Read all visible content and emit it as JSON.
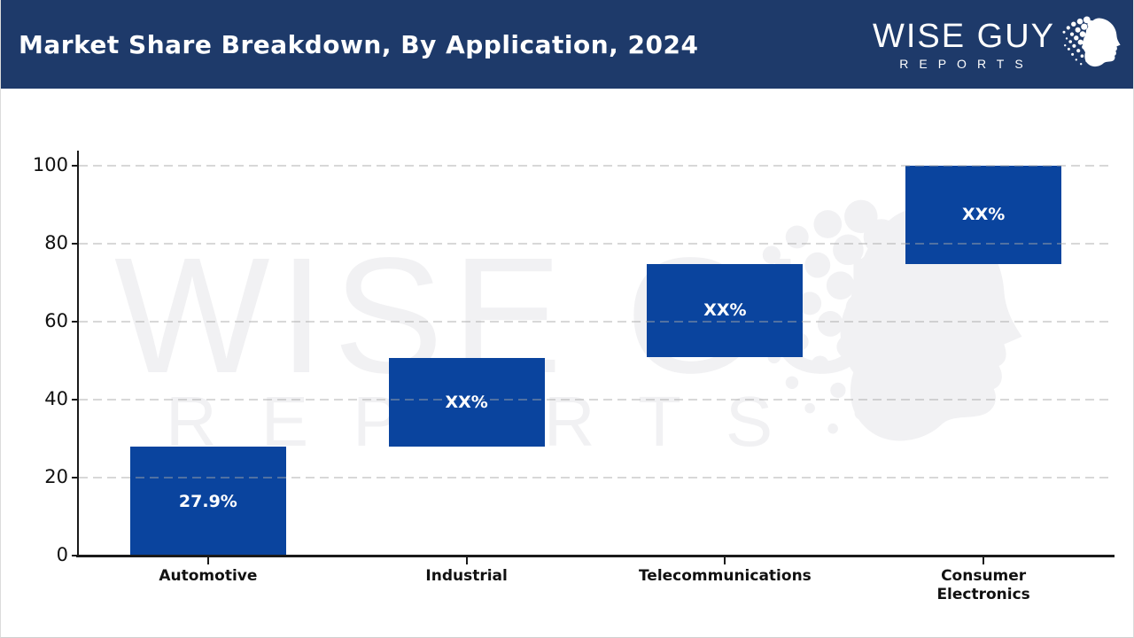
{
  "header": {
    "title": "Market Share Breakdown, By Application, 2024",
    "logo": {
      "name": "WISE GUY REPORTS",
      "line1": "WISE GUY",
      "line2": "REPORTS"
    }
  },
  "watermark": {
    "line1": "WISE GUY",
    "line2": "REPORTS"
  },
  "chart_data": {
    "type": "bar",
    "subtype": "waterfall",
    "title": "Market Share Breakdown, By Application, 2024",
    "categories": [
      "Automotive",
      "Industrial",
      "Telecommunications",
      "Consumer\nElectronics"
    ],
    "segments": [
      {
        "category": "Automotive",
        "start": 0,
        "end": 27.9,
        "label": "27.9%"
      },
      {
        "category": "Industrial",
        "start": 27.9,
        "end": 50.7,
        "label": "XX%"
      },
      {
        "category": "Telecommunications",
        "start": 51.0,
        "end": 74.8,
        "label": "XX%"
      },
      {
        "category": "Consumer Electronics",
        "start": 74.8,
        "end": 100,
        "label": "XX%"
      }
    ],
    "xlabel": "",
    "ylabel": "",
    "ylim": [
      0,
      100
    ],
    "yticks": [
      0,
      20,
      40,
      60,
      80,
      100
    ],
    "grid": "horizontal-dashed",
    "legend": "none",
    "bar_color": "#0a449e",
    "bar_label_color": "#ffffff"
  },
  "colors": {
    "header_bg": "#1e3a6a",
    "title_text": "#ffffff",
    "bar": "#0a449e",
    "axis": "#1a1a1a",
    "tick_label": "#111111",
    "gridline_dash": "#d8d8d8",
    "watermark": "#f1f1f3",
    "page_bg": "#ffffff",
    "border": "#dcdcdc"
  }
}
